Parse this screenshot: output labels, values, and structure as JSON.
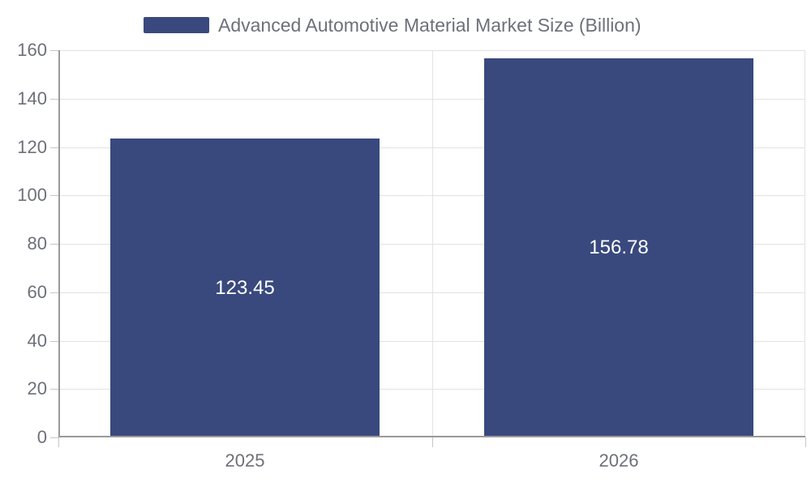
{
  "legend": {
    "label": "Advanced Automotive Material Market Size (Billion)"
  },
  "chart_data": {
    "type": "bar",
    "categories": [
      "2025",
      "2026"
    ],
    "series": [
      {
        "name": "Advanced Automotive Material Market Size (Billion)",
        "values": [
          123.45,
          156.78
        ]
      }
    ],
    "value_labels": [
      "123.45",
      "156.78"
    ],
    "value_label_position": "inside-middle",
    "ylim": [
      0,
      160
    ],
    "yticks": [
      0,
      20,
      40,
      60,
      80,
      100,
      120,
      140,
      160
    ],
    "grid": true,
    "legend_position": "top"
  },
  "colors": {
    "bar": "#39497E",
    "value_label": "#FFFFFF",
    "axis_text": "#6E7079",
    "legend_text": "#6E7079",
    "axis_line": "#999999",
    "tick_line": "#C6C6C6",
    "grid_line": "#E2E2E2",
    "background": "#FFFFFF"
  }
}
